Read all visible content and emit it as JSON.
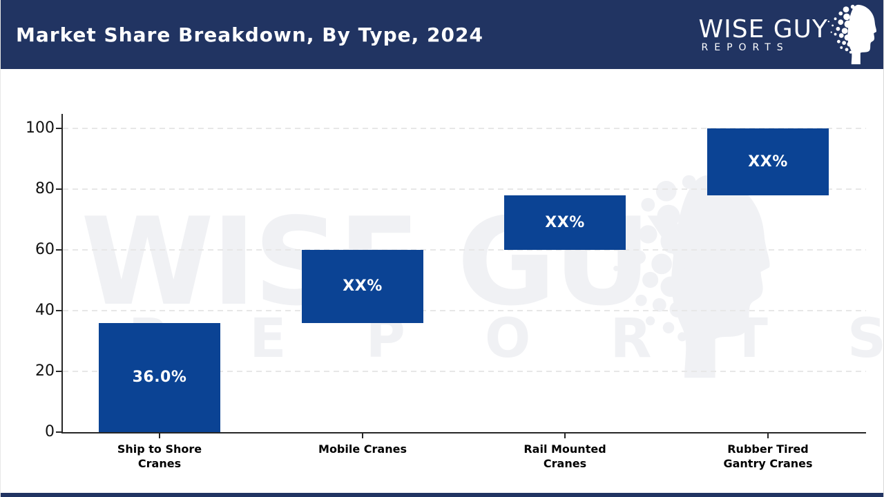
{
  "header": {
    "title": "Market Share Breakdown, By Type, 2024",
    "logo": {
      "line1": "WISE GUY",
      "line2": "REPORTS"
    }
  },
  "watermark": {
    "line1": "WISE GUY",
    "line2": "R E P O R T S"
  },
  "colors": {
    "header_bg": "#213462",
    "footer_bg": "#213462",
    "bar": "#0b4394",
    "bar_label": "#ffffff",
    "gridline": "#e7e7e7",
    "axis": "#262626",
    "watermark": "#f0f1f4"
  },
  "chart_data": {
    "type": "bar",
    "subtype": "waterfall",
    "title": "Market Share Breakdown, By Type, 2024",
    "categories": [
      [
        "Ship to Shore",
        "Cranes"
      ],
      [
        "Mobile Cranes"
      ],
      [
        "Rail Mounted",
        "Cranes"
      ],
      [
        "Rubber Tired",
        "Gantry Cranes"
      ]
    ],
    "segments": [
      {
        "start": 0,
        "end": 36,
        "label": "36.0%"
      },
      {
        "start": 36,
        "end": 60,
        "label": "XX%"
      },
      {
        "start": 60,
        "end": 78,
        "label": "XX%"
      },
      {
        "start": 78,
        "end": 100,
        "label": "XX%"
      }
    ],
    "yticks": [
      0,
      20,
      40,
      60,
      80,
      100
    ],
    "ylim": [
      0,
      105
    ],
    "xlabel": "",
    "ylabel": "",
    "grid": "horizontal-dashed",
    "legend": "none",
    "bar_color": "#0b4394"
  }
}
